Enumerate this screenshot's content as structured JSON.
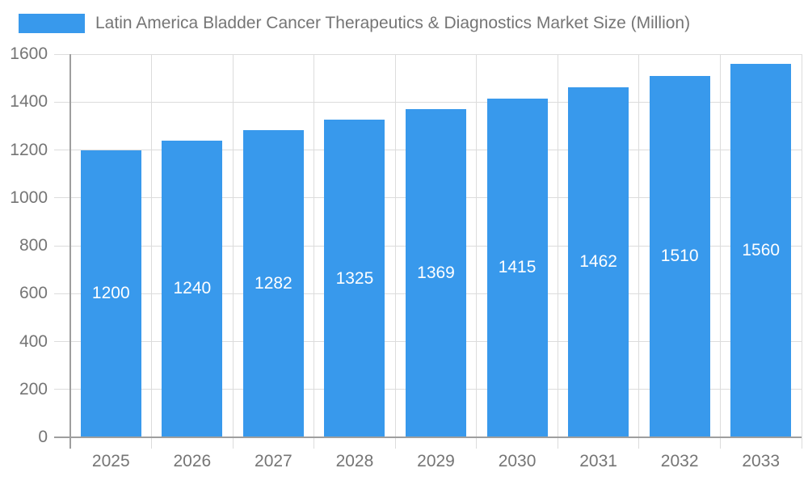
{
  "legend": {
    "label": "Latin America Bladder Cancer Therapeutics & Diagnostics Market Size (Million)",
    "swatch_color": "#3899EC"
  },
  "chart_data": {
    "type": "bar",
    "title": "Latin America Bladder Cancer Therapeutics & Diagnostics Market Size (Million)",
    "categories": [
      "2025",
      "2026",
      "2027",
      "2028",
      "2029",
      "2030",
      "2031",
      "2032",
      "2033"
    ],
    "values": [
      1200,
      1240,
      1282,
      1325,
      1369,
      1415,
      1462,
      1510,
      1560
    ],
    "value_labels": [
      "1200",
      "1240",
      "1282",
      "1325",
      "1369",
      "1415",
      "1462",
      "1510",
      "1560"
    ],
    "xlabel": "",
    "ylabel": "",
    "ylim": [
      0,
      1600
    ],
    "yticks": [
      0,
      200,
      400,
      600,
      800,
      1000,
      1200,
      1400,
      1600
    ],
    "grid": true,
    "legend_position": "top-left",
    "bar_color": "#3899EC",
    "value_label_color": "#ffffff",
    "axis_text_color": "#757575",
    "gridline_color": "#dcdcdc",
    "axis_line_color": "#9e9e9e"
  }
}
